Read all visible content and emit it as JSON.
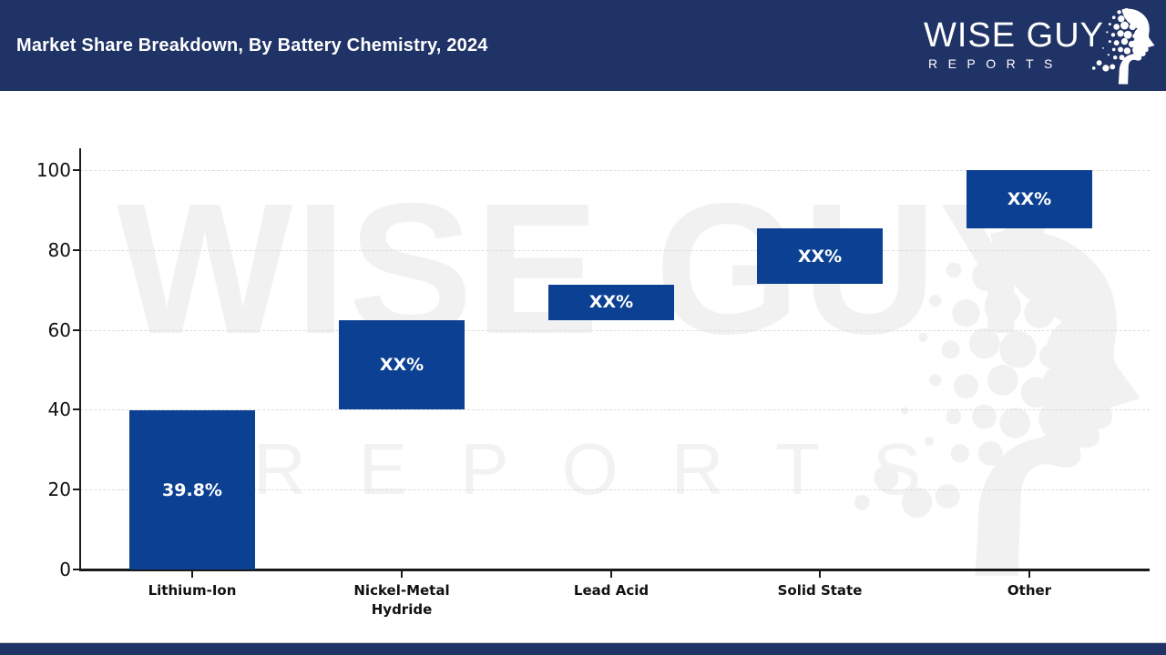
{
  "header": {
    "title": "Market Share Breakdown, By Battery Chemistry, 2024",
    "logo": {
      "line1": "WISE GUY",
      "line2": "REPORTS"
    }
  },
  "watermark": {
    "line1": "WISE GUY",
    "line2": "REPORTS"
  },
  "colors": {
    "header_bg": "#203366",
    "footer_bg": "#203366",
    "bar": "#0b4092",
    "axis": "#1a1a1a",
    "grid": "#dcdcdc",
    "bar_label": "#ffffff",
    "watermark": "#f1f1f1"
  },
  "chart_data": {
    "type": "bar",
    "subtype": "waterfall",
    "title": "Market Share Breakdown, By Battery Chemistry, 2024",
    "categories": [
      "Lithium-Ion",
      "Nickel-Metal Hydride",
      "Lead Acid",
      "Solid State",
      "Other"
    ],
    "segments": [
      {
        "category": "Lithium-Ion",
        "start": 0,
        "end": 39.8,
        "label": "39.8%"
      },
      {
        "category": "Nickel-Metal Hydride",
        "start": 40,
        "end": 62.5,
        "label": "XX%"
      },
      {
        "category": "Lead Acid",
        "start": 62.5,
        "end": 71.3,
        "label": "XX%"
      },
      {
        "category": "Solid State",
        "start": 71.5,
        "end": 85.4,
        "label": "XX%"
      },
      {
        "category": "Other",
        "start": 85.4,
        "end": 100,
        "label": "XX%"
      }
    ],
    "ylim": [
      0,
      105
    ],
    "yticks": [
      0,
      20,
      40,
      60,
      80,
      100
    ],
    "grid": "horizontal-dashed",
    "legend": "none",
    "xlabel": "",
    "ylabel": ""
  }
}
